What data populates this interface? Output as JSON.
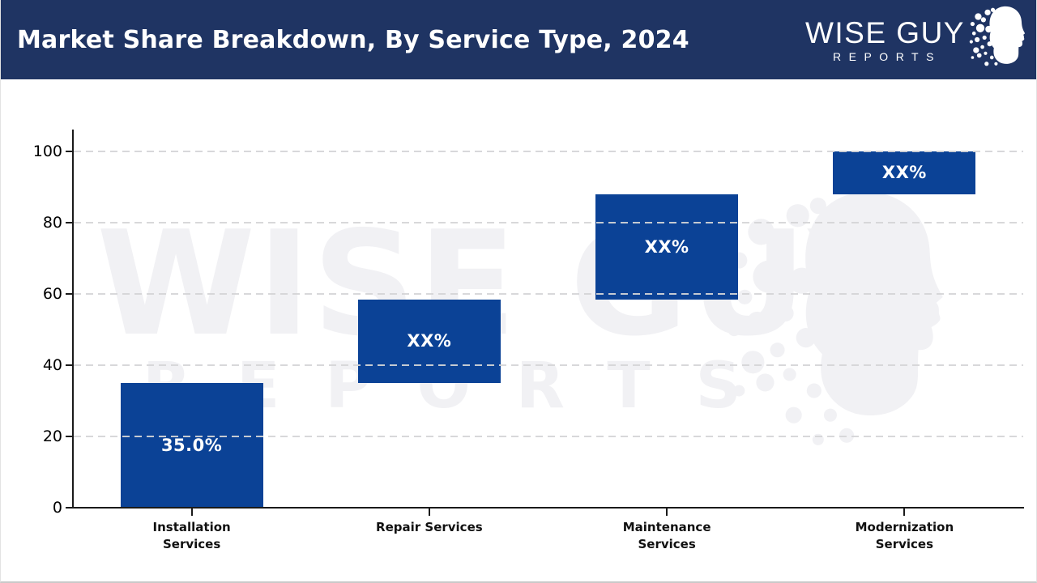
{
  "header": {
    "title": "Market Share Breakdown, By Service Type, 2024",
    "brand": {
      "name": "WISE GUY",
      "reports": "REPORTS"
    }
  },
  "watermark": {
    "name": "WISE GUY",
    "reports": "REPORTS"
  },
  "chart_data": {
    "type": "bar",
    "variant": "floating-waterfall",
    "title": "Market Share Breakdown, By Service Type, 2024",
    "categories": [
      "Installation Services",
      "Repair Services",
      "Maintenance Services",
      "Modernization Services"
    ],
    "category_lines": [
      [
        "Installation",
        "Services"
      ],
      [
        "Repair Services"
      ],
      [
        "Maintenance",
        "Services"
      ],
      [
        "Modernization",
        "Services"
      ]
    ],
    "bars": [
      {
        "category": "Installation Services",
        "start": 0,
        "end": 35,
        "label": "35.0%"
      },
      {
        "category": "Repair Services",
        "start": 35,
        "end": 58.5,
        "label": "XX%"
      },
      {
        "category": "Maintenance Services",
        "start": 58.5,
        "end": 88,
        "label": "XX%"
      },
      {
        "category": "Modernization Services",
        "start": 88,
        "end": 100,
        "label": "XX%"
      }
    ],
    "values_increment": [
      35,
      23.5,
      29.5,
      12
    ],
    "xlabel": "",
    "ylabel": "",
    "ylim": [
      0,
      100
    ],
    "yticks": [
      0,
      20,
      40,
      60,
      80,
      100
    ],
    "grid": "horizontal-dashed",
    "legend": "none",
    "bar_color": "#0b4296"
  },
  "colors": {
    "header_bg": "#1f3463",
    "bar": "#0b4296",
    "grid": "#d5d5d7",
    "axis": "#1a1a1a",
    "watermark": "#f1f1f4",
    "title_text": "#ffffff"
  }
}
